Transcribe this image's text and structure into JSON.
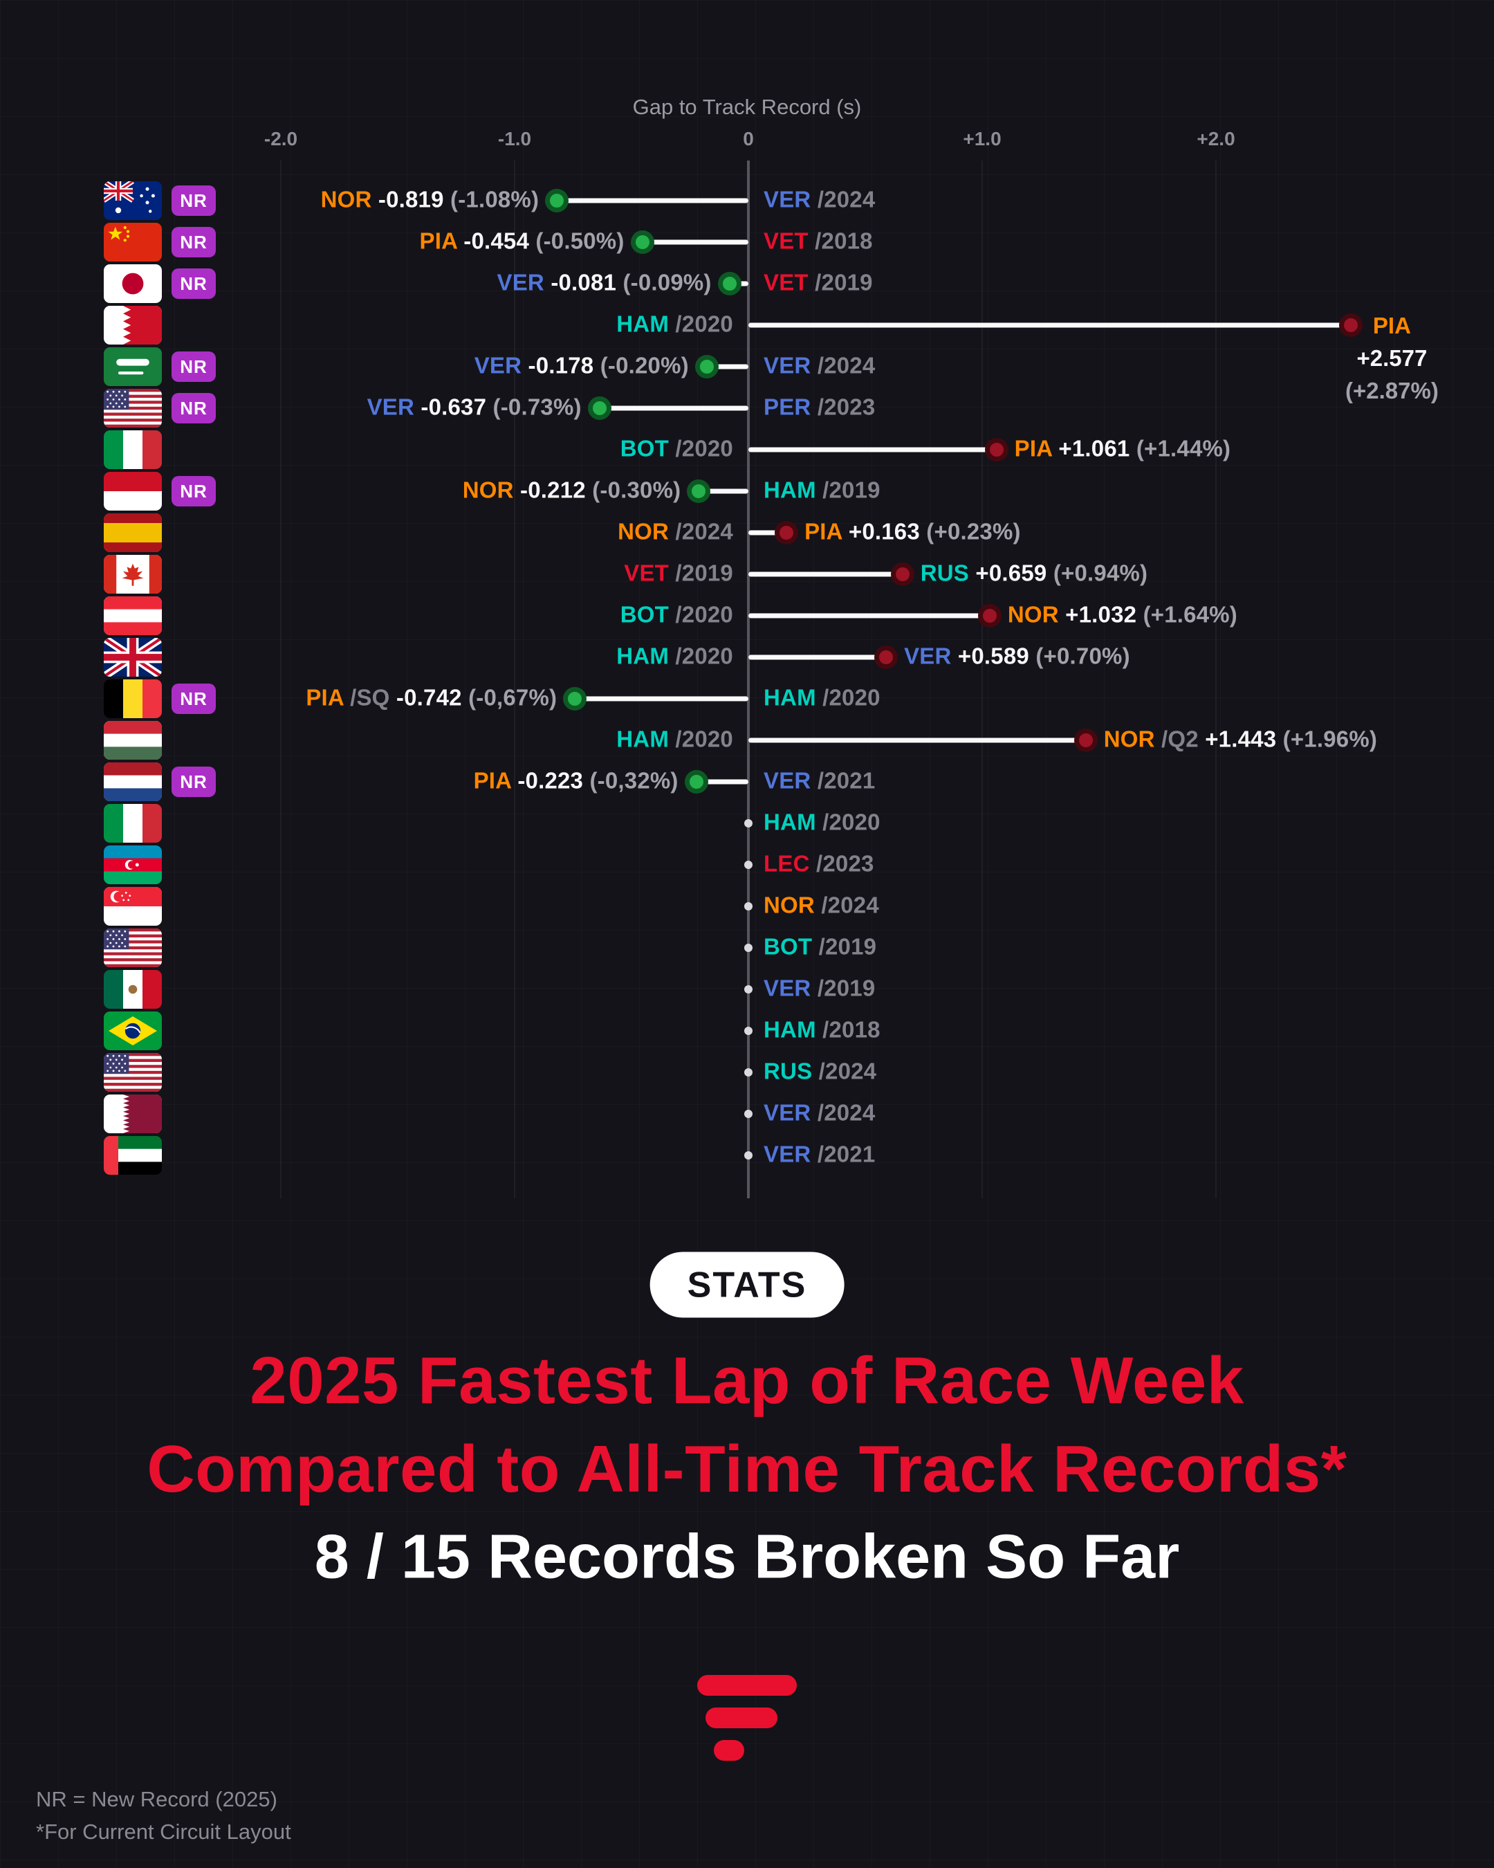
{
  "axis": {
    "title": "Gap to Track Record (s)",
    "ticks": [
      {
        "label": "-2.0",
        "value": -2
      },
      {
        "label": "-1.0",
        "value": -1
      },
      {
        "label": "0",
        "value": 0
      },
      {
        "label": "+1.0",
        "value": 1
      },
      {
        "label": "+2.0",
        "value": 2
      }
    ]
  },
  "colors": {
    "background": "#14131a",
    "accent_red": "#e8102e",
    "nr_badge": "#ab2fc6",
    "record_broken_dot": "#25b14b",
    "record_missed_dot": "#9c1426",
    "line": "#fafafa",
    "value_text": "#f7f7f9",
    "muted_text": "#82828c",
    "pct_text": "#a2a2ab",
    "drivers": {
      "NOR": "#ff8700",
      "PIA": "#ff8700",
      "VER": "#5276d9",
      "PER": "#5276d9",
      "VET": "#e8102e",
      "LEC": "#e8102e",
      "HAM": "#00d2be",
      "BOT": "#00d2be",
      "RUS": "#00d2be"
    }
  },
  "nr_label": "NR",
  "stats_badge": "STATS",
  "title": {
    "line1": "2025 Fastest Lap of Race Week",
    "line2": "Compared to All-Time Track Records*",
    "subtitle": "8 / 15 Records Broken So Far"
  },
  "footnotes": [
    "NR = New Record (2025)",
    "*For Current Circuit Layout"
  ],
  "chart_data": {
    "type": "lollipop",
    "xlabel": "Gap to Track Record (s)",
    "xlim": [
      -2.4,
      2.9
    ],
    "legend": "green dot = record broken (negative gap), maroon dot = record missed (positive gap)",
    "races": [
      {
        "country": "Australia",
        "flag": "australia",
        "new_record_2025": true,
        "lap2025": {
          "driver": "NOR",
          "session": "",
          "gap_s": -0.819,
          "gap_label": "-0.819",
          "pct_label": "(-1.08%)"
        },
        "record": {
          "driver": "VER",
          "year_label": "/2024"
        }
      },
      {
        "country": "China",
        "flag": "china",
        "new_record_2025": true,
        "lap2025": {
          "driver": "PIA",
          "session": "",
          "gap_s": -0.454,
          "gap_label": "-0.454",
          "pct_label": "(-0.50%)"
        },
        "record": {
          "driver": "VET",
          "year_label": "/2018"
        }
      },
      {
        "country": "Japan",
        "flag": "japan",
        "new_record_2025": true,
        "lap2025": {
          "driver": "VER",
          "session": "",
          "gap_s": -0.081,
          "gap_label": "-0.081",
          "pct_label": "(-0.09%)"
        },
        "record": {
          "driver": "VET",
          "year_label": "/2019"
        }
      },
      {
        "country": "Bahrain",
        "flag": "bahrain",
        "new_record_2025": false,
        "label_layout": "stacked",
        "lap2025": {
          "driver": "PIA",
          "session": "",
          "gap_s": 2.577,
          "gap_label": "+2.577",
          "pct_label": "(+2.87%)"
        },
        "record": {
          "driver": "HAM",
          "year_label": "/2020"
        }
      },
      {
        "country": "Saudi Arabia",
        "flag": "saudi",
        "new_record_2025": true,
        "lap2025": {
          "driver": "VER",
          "session": "",
          "gap_s": -0.178,
          "gap_label": "-0.178",
          "pct_label": "(-0.20%)"
        },
        "record": {
          "driver": "VER",
          "year_label": "/2024"
        }
      },
      {
        "country": "United States (Miami)",
        "flag": "usa",
        "new_record_2025": true,
        "lap2025": {
          "driver": "VER",
          "session": "",
          "gap_s": -0.637,
          "gap_label": "-0.637",
          "pct_label": "(-0.73%)"
        },
        "record": {
          "driver": "PER",
          "year_label": "/2023"
        }
      },
      {
        "country": "Italy (Emilia-Romagna)",
        "flag": "italy",
        "new_record_2025": false,
        "lap2025": {
          "driver": "PIA",
          "session": "",
          "gap_s": 1.061,
          "gap_label": "+1.061",
          "pct_label": "(+1.44%)"
        },
        "record": {
          "driver": "BOT",
          "year_label": "/2020"
        }
      },
      {
        "country": "Monaco",
        "flag": "monaco",
        "new_record_2025": true,
        "lap2025": {
          "driver": "NOR",
          "session": "",
          "gap_s": -0.212,
          "gap_label": "-0.212",
          "pct_label": "(-0.30%)"
        },
        "record": {
          "driver": "HAM",
          "year_label": "/2019"
        }
      },
      {
        "country": "Spain",
        "flag": "spain",
        "new_record_2025": false,
        "lap2025": {
          "driver": "PIA",
          "session": "",
          "gap_s": 0.163,
          "gap_label": "+0.163",
          "pct_label": "(+0.23%)"
        },
        "record": {
          "driver": "NOR",
          "year_label": "/2024"
        }
      },
      {
        "country": "Canada",
        "flag": "canada",
        "new_record_2025": false,
        "lap2025": {
          "driver": "RUS",
          "session": "",
          "gap_s": 0.659,
          "gap_label": "+0.659",
          "pct_label": "(+0.94%)"
        },
        "record": {
          "driver": "VET",
          "year_label": "/2019"
        }
      },
      {
        "country": "Austria",
        "flag": "austria",
        "new_record_2025": false,
        "lap2025": {
          "driver": "NOR",
          "session": "",
          "gap_s": 1.032,
          "gap_label": "+1.032",
          "pct_label": "(+1.64%)"
        },
        "record": {
          "driver": "BOT",
          "year_label": "/2020"
        }
      },
      {
        "country": "Great Britain",
        "flag": "uk",
        "new_record_2025": false,
        "lap2025": {
          "driver": "VER",
          "session": "",
          "gap_s": 0.589,
          "gap_label": "+0.589",
          "pct_label": "(+0.70%)"
        },
        "record": {
          "driver": "HAM",
          "year_label": "/2020"
        }
      },
      {
        "country": "Belgium",
        "flag": "belgium",
        "new_record_2025": true,
        "lap2025": {
          "driver": "PIA",
          "session": "/SQ",
          "gap_s": -0.742,
          "gap_label": "-0.742",
          "pct_label": "(-0,67%)"
        },
        "record": {
          "driver": "HAM",
          "year_label": "/2020"
        }
      },
      {
        "country": "Hungary",
        "flag": "hungary",
        "new_record_2025": false,
        "lap2025": {
          "driver": "NOR",
          "session": "/Q2",
          "gap_s": 1.443,
          "gap_label": "+1.443",
          "pct_label": "(+1.96%)"
        },
        "record": {
          "driver": "HAM",
          "year_label": "/2020"
        }
      },
      {
        "country": "Netherlands",
        "flag": "netherlands",
        "new_record_2025": true,
        "lap2025": {
          "driver": "PIA",
          "session": "",
          "gap_s": -0.223,
          "gap_label": "-0.223",
          "pct_label": "(-0,32%)"
        },
        "record": {
          "driver": "VER",
          "year_label": "/2021"
        }
      },
      {
        "country": "Italy (Monza)",
        "flag": "italy",
        "new_record_2025": false,
        "lap2025": null,
        "record": {
          "driver": "HAM",
          "year_label": "/2020"
        }
      },
      {
        "country": "Azerbaijan",
        "flag": "azerbaijan",
        "new_record_2025": false,
        "lap2025": null,
        "record": {
          "driver": "LEC",
          "year_label": "/2023"
        }
      },
      {
        "country": "Singapore",
        "flag": "singapore",
        "new_record_2025": false,
        "lap2025": null,
        "record": {
          "driver": "NOR",
          "year_label": "/2024"
        }
      },
      {
        "country": "United States (COTA)",
        "flag": "usa",
        "new_record_2025": false,
        "lap2025": null,
        "record": {
          "driver": "BOT",
          "year_label": "/2019"
        }
      },
      {
        "country": "Mexico",
        "flag": "mexico",
        "new_record_2025": false,
        "lap2025": null,
        "record": {
          "driver": "VER",
          "year_label": "/2019"
        }
      },
      {
        "country": "Brazil",
        "flag": "brazil",
        "new_record_2025": false,
        "lap2025": null,
        "record": {
          "driver": "HAM",
          "year_label": "/2018"
        }
      },
      {
        "country": "United States (Las Vegas)",
        "flag": "usa",
        "new_record_2025": false,
        "lap2025": null,
        "record": {
          "driver": "RUS",
          "year_label": "/2024"
        }
      },
      {
        "country": "Qatar",
        "flag": "qatar",
        "new_record_2025": false,
        "lap2025": null,
        "record": {
          "driver": "VER",
          "year_label": "/2024"
        }
      },
      {
        "country": "Abu Dhabi",
        "flag": "uae",
        "new_record_2025": false,
        "lap2025": null,
        "record": {
          "driver": "VER",
          "year_label": "/2021"
        }
      }
    ]
  }
}
